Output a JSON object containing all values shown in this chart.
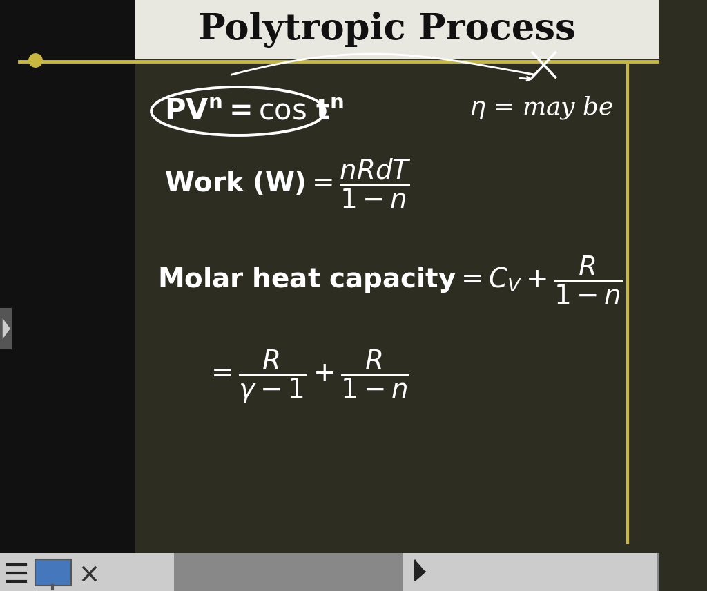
{
  "title": "Polytropic Process",
  "title_fontsize": 38,
  "title_color": "#111111",
  "title_bg_color": "#e8e8e0",
  "bg_color": "#2d2d22",
  "left_panel_color": "#111111",
  "text_color": "#ffffff",
  "gold_color": "#c8b840",
  "yellow_right_color": "#c8b840",
  "figwidth": 10.24,
  "figheight": 8.56,
  "dpi": 100
}
